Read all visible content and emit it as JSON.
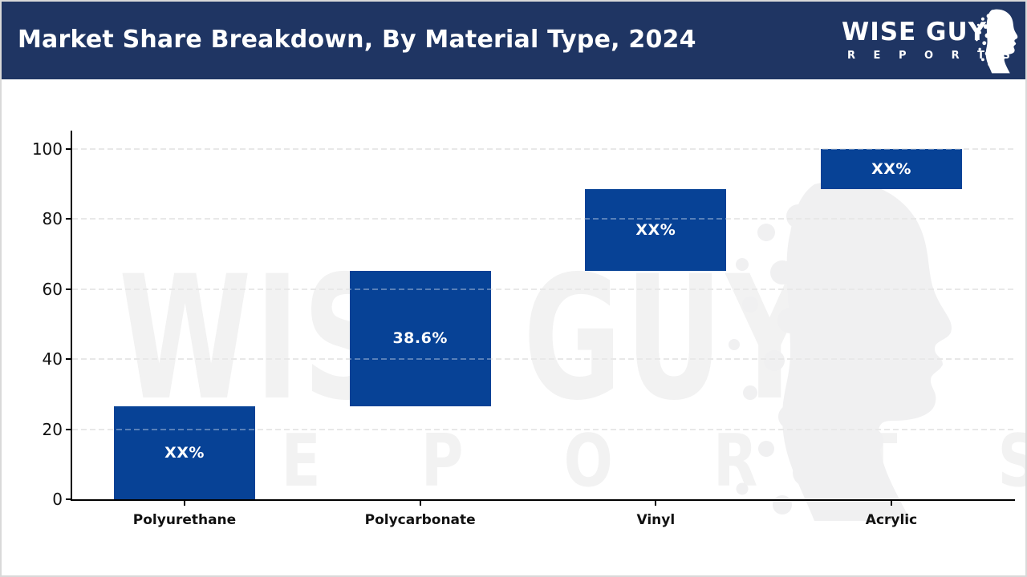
{
  "header": {
    "title": "Market Share Breakdown, By Material Type, 2024",
    "bg_color": "#1f3563"
  },
  "logo": {
    "wordmark": "WISE GUY",
    "sub": "R E P O R T S",
    "icon": "dotted-face-profile"
  },
  "watermark": {
    "wordmark": "WISE GUY",
    "sub": "R E P O R T S",
    "icon": "dotted-face-profile"
  },
  "chart_data": {
    "type": "bar",
    "subtype": "floating_waterfall_segments",
    "title": "Market Share Breakdown, By Material Type, 2024",
    "categories": [
      "Polyurethane",
      "Polycarbonate",
      "Vinyl",
      "Acrylic"
    ],
    "segments": [
      {
        "category": "Polyurethane",
        "start": 0,
        "end": 26.6,
        "label": "XX%"
      },
      {
        "category": "Polycarbonate",
        "start": 26.6,
        "end": 65.2,
        "label": "38.6%"
      },
      {
        "category": "Vinyl",
        "start": 65.2,
        "end": 88.6,
        "label": "XX%"
      },
      {
        "category": "Acrylic",
        "start": 88.6,
        "end": 100,
        "label": "XX%"
      }
    ],
    "yticks": [
      0,
      20,
      40,
      60,
      80,
      100
    ],
    "ylim": [
      0,
      105
    ],
    "xlabel": "",
    "ylabel": "",
    "grid": "horizontal_dashed",
    "legend": null,
    "bar_color": "#074296",
    "bar_label_color": "#ffffff",
    "axis_color": "#000000",
    "gridline_color": "#dcdcdc"
  }
}
